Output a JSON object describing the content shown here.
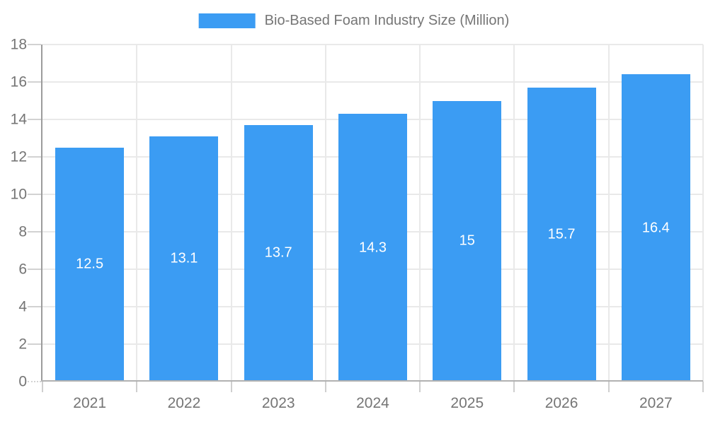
{
  "chart_data": {
    "type": "bar",
    "title": "Bio-Based Foam Industry Size (Million)",
    "categories": [
      "2021",
      "2022",
      "2023",
      "2024",
      "2025",
      "2026",
      "2027"
    ],
    "values": [
      12.5,
      13.1,
      13.7,
      14.3,
      15,
      15.7,
      16.4
    ],
    "value_labels": [
      "12.5",
      "13.1",
      "13.7",
      "14.3",
      "15",
      "15.7",
      "16.4"
    ],
    "xlabel": "",
    "ylabel": "",
    "ylim": [
      0,
      18
    ],
    "y_tick_step": 2,
    "y_tick_labels": [
      "0",
      "2",
      "4",
      "6",
      "8",
      "10",
      "12",
      "14",
      "16",
      "18"
    ],
    "grid": "horizontal and vertical, light gray",
    "legend_position": "top-center",
    "value_label_position": "center of bar, white"
  },
  "legend": {
    "series_label": "Bio-Based Foam Industry Size (Million)"
  },
  "colors": {
    "bar": "#3b9cf3",
    "grid": "#e9e9e9",
    "y_axis": "#9c9c9c",
    "x_axis": "#b1b1b1",
    "tick": "#d2d2d2",
    "axis_text": "#757575",
    "legend_text": "#757575",
    "value_text": "#ffffff",
    "background": "#ffffff"
  }
}
